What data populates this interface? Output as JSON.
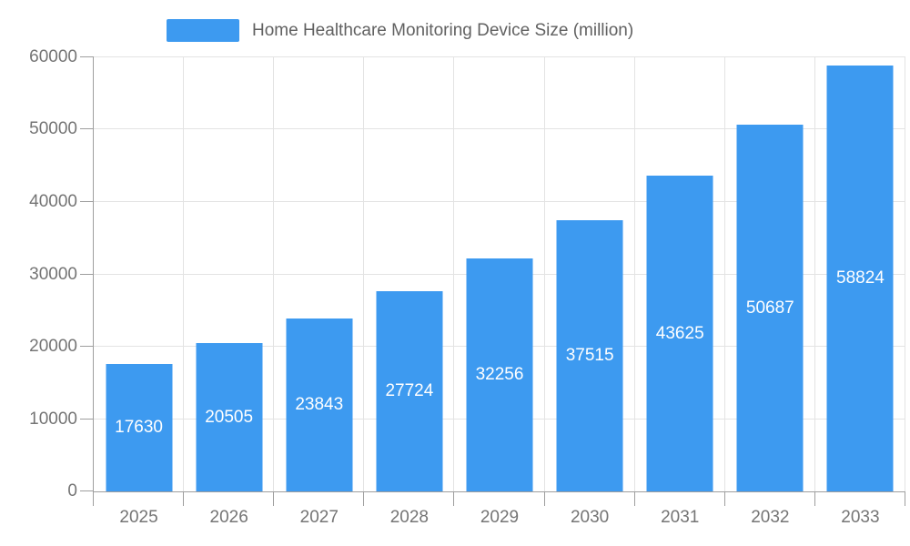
{
  "chart_data": {
    "type": "bar",
    "title": "Home Healthcare Monitoring Device Size (million)",
    "legend": [
      "Home Healthcare Monitoring Device Size (million)"
    ],
    "legend_position": "top",
    "categories": [
      "2025",
      "2026",
      "2027",
      "2028",
      "2029",
      "2030",
      "2031",
      "2032",
      "2033"
    ],
    "values": [
      17630,
      20505,
      23843,
      27724,
      32256,
      37515,
      43625,
      50687,
      58824
    ],
    "xlabel": "",
    "ylabel": "",
    "ylim": [
      0,
      60000
    ],
    "y_ticks": [
      0,
      10000,
      20000,
      30000,
      40000,
      50000,
      60000
    ],
    "grid": "both",
    "bar_labels_inside": true
  },
  "colors": {
    "bar": "#3D9AF0",
    "bar_value_label": "#FFFFFF",
    "axis_label": "#757575",
    "legend_text": "#616161",
    "gridline": "#E3E3E3",
    "axis_line": "#9E9E9E",
    "background": "#FFFFFF"
  }
}
